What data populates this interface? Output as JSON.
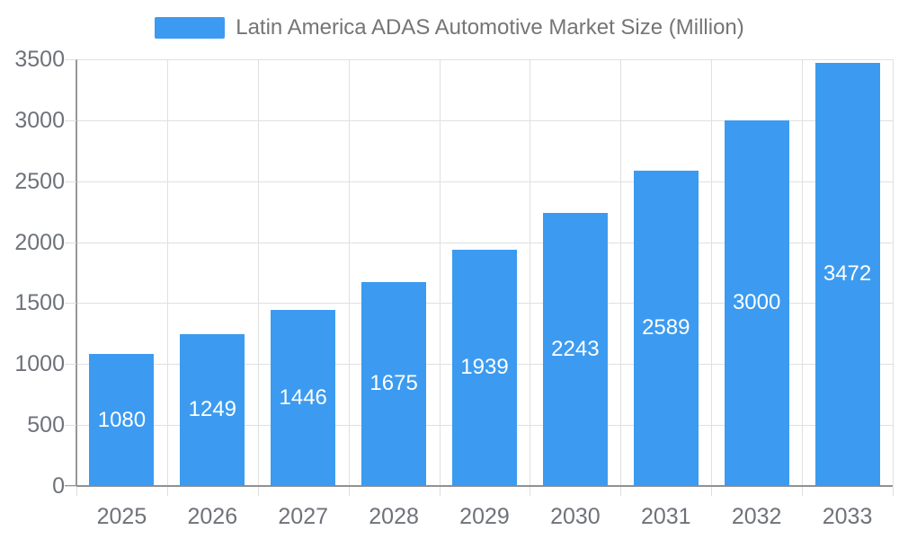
{
  "legend": {
    "series_label": "Latin America ADAS Automotive Market Size (Million)"
  },
  "chart_data": {
    "type": "bar",
    "title": "Latin America ADAS Automotive Market Size (Million)",
    "categories": [
      "2025",
      "2026",
      "2027",
      "2028",
      "2029",
      "2030",
      "2031",
      "2032",
      "2033"
    ],
    "values": [
      1080,
      1249,
      1446,
      1675,
      1939,
      2243,
      2589,
      3000,
      3472
    ],
    "xlabel": "",
    "ylabel": "",
    "ylim": [
      0,
      3500
    ],
    "ytick_step": 500,
    "grid": true,
    "legend_position": "top",
    "bar_color": "#3c9bf0",
    "value_label_color": "#ffffff",
    "axis_label_color": "#6e7279",
    "legend_text_color": "#757575",
    "grid_color": "#e0e0e0",
    "axis_line_color": "#949494"
  }
}
